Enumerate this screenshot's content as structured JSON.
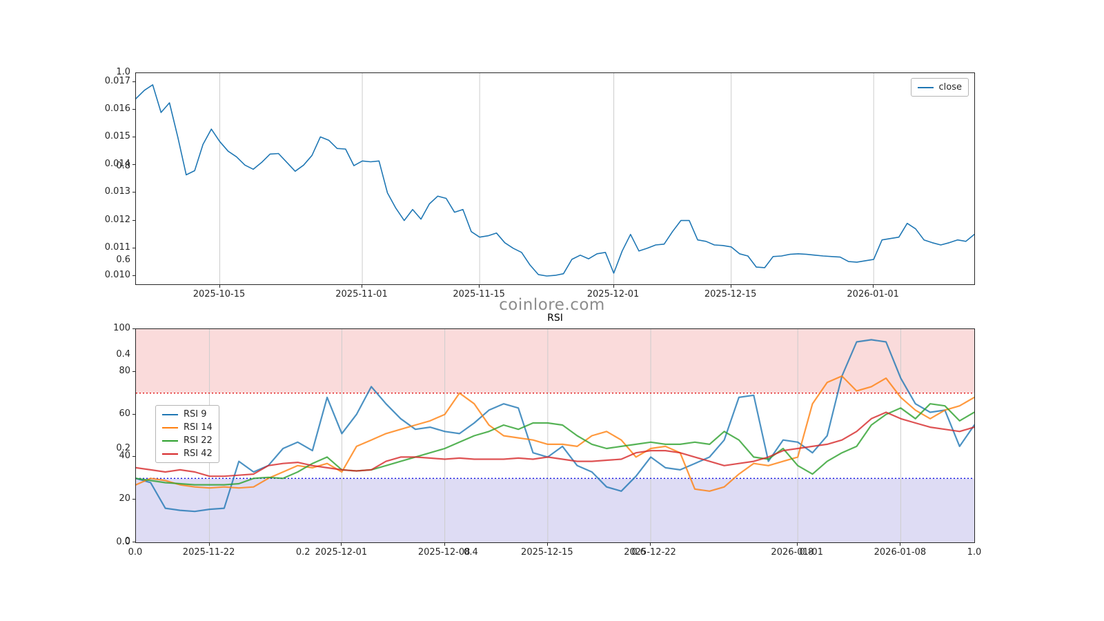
{
  "watermark": "coinlore.com",
  "rsi_title": "RSI",
  "hidden_axis": {
    "y_labels": [
      "1.0",
      "0.8",
      "0.6",
      "0.4",
      "0.2",
      "0.0"
    ],
    "x_labels": [
      "0.0",
      "0.2",
      "0.4",
      "0.6",
      "0.8",
      "1.0"
    ]
  },
  "chart_data": [
    {
      "name": "price",
      "type": "line",
      "title": "",
      "legend_pos": "upper-right",
      "ylim": [
        0.0097,
        0.01732
      ],
      "lw": 1.6,
      "opacity": 1,
      "grid": "vertical",
      "yticks": [
        {
          "v": 0.01,
          "label": "0.010"
        },
        {
          "v": 0.011,
          "label": "0.011"
        },
        {
          "v": 0.012,
          "label": "0.012"
        },
        {
          "v": 0.013,
          "label": "0.013"
        },
        {
          "v": 0.014,
          "label": "0.014"
        },
        {
          "v": 0.015,
          "label": "0.015"
        },
        {
          "v": 0.016,
          "label": "0.016"
        },
        {
          "v": 0.017,
          "label": "0.017"
        }
      ],
      "xticks": [
        {
          "i": 10,
          "label": "2025-10-15"
        },
        {
          "i": 27,
          "label": "2025-11-01"
        },
        {
          "i": 41,
          "label": "2025-11-15"
        },
        {
          "i": 57,
          "label": "2025-12-01"
        },
        {
          "i": 71,
          "label": "2025-12-15"
        },
        {
          "i": 88,
          "label": "2026-01-01"
        }
      ],
      "series": [
        {
          "name": "close",
          "color": "#1f77b4",
          "values": [
            0.0164,
            0.0167,
            0.0169,
            0.0159,
            0.01625,
            0.015,
            0.01365,
            0.0138,
            0.01475,
            0.0153,
            0.01485,
            0.0145,
            0.0143,
            0.014,
            0.01385,
            0.0141,
            0.0144,
            0.01442,
            0.0141,
            0.01378,
            0.014,
            0.01435,
            0.01502,
            0.0149,
            0.0146,
            0.01458,
            0.01398,
            0.01415,
            0.01412,
            0.01415,
            0.013,
            0.01245,
            0.012,
            0.0124,
            0.01205,
            0.0126,
            0.01288,
            0.0128,
            0.0123,
            0.0124,
            0.0116,
            0.0114,
            0.01145,
            0.01155,
            0.0112,
            0.011,
            0.01085,
            0.0104,
            0.01005,
            0.01,
            0.01002,
            0.01008,
            0.0106,
            0.01075,
            0.01062,
            0.0108,
            0.01085,
            0.0101,
            0.0109,
            0.0115,
            0.0109,
            0.011,
            0.01112,
            0.01115,
            0.0116,
            0.012,
            0.012,
            0.0113,
            0.01125,
            0.01112,
            0.0111,
            0.01105,
            0.0108,
            0.01072,
            0.01032,
            0.0103,
            0.0107,
            0.01072,
            0.01078,
            0.0108,
            0.01078,
            0.01075,
            0.01072,
            0.0107,
            0.01068,
            0.01052,
            0.0105,
            0.01055,
            0.0106,
            0.0113,
            0.01135,
            0.0114,
            0.0119,
            0.0117,
            0.0113,
            0.0112,
            0.01112,
            0.0112,
            0.0113,
            0.01125,
            0.0115
          ]
        }
      ]
    },
    {
      "name": "rsi",
      "type": "line",
      "title": "RSI",
      "legend_pos": "mid-left",
      "ylim": [
        0,
        100
      ],
      "lw": 2.2,
      "opacity": 0.8,
      "grid": "vertical",
      "bands": [
        {
          "name": "overbought-band",
          "from": 70,
          "to": 100,
          "color": "#fadbdb"
        },
        {
          "name": "oversold-band",
          "from": 0,
          "to": 30,
          "color": "#dedcf4"
        }
      ],
      "hlines": [
        {
          "name": "overbought-line",
          "v": 70,
          "color": "#e01010"
        },
        {
          "name": "oversold-line",
          "v": 30,
          "color": "#1010e0"
        }
      ],
      "yticks": [
        {
          "v": 0,
          "label": "0"
        },
        {
          "v": 20,
          "label": "20"
        },
        {
          "v": 40,
          "label": "40"
        },
        {
          "v": 60,
          "label": "60"
        },
        {
          "v": 80,
          "label": "80"
        },
        {
          "v": 100,
          "label": "100"
        }
      ],
      "xticks": [
        {
          "i": 5,
          "label": "2025-11-22"
        },
        {
          "i": 14,
          "label": "2025-12-01"
        },
        {
          "i": 21,
          "label": "2025-12-08"
        },
        {
          "i": 28,
          "label": "2025-12-15"
        },
        {
          "i": 35,
          "label": "2025-12-22"
        },
        {
          "i": 45,
          "label": "2026-01-01"
        },
        {
          "i": 52,
          "label": "2026-01-08"
        }
      ],
      "series": [
        {
          "name": "RSI 9",
          "color": "#1f77b4",
          "values": [
            30,
            28,
            16,
            15,
            14.5,
            15.5,
            16,
            38,
            33,
            36,
            44,
            47,
            43,
            68,
            51,
            60,
            73,
            65,
            58,
            53,
            54,
            52,
            51,
            56,
            62,
            65,
            63,
            42,
            40,
            45,
            36,
            33,
            26,
            24,
            31,
            40,
            35,
            34,
            37,
            40,
            48,
            68,
            69,
            38,
            48,
            47,
            42,
            50,
            78,
            94,
            95,
            94,
            77,
            65,
            61,
            62,
            45,
            55
          ]
        },
        {
          "name": "RSI 14",
          "color": "#ff7f0e",
          "values": [
            27,
            30,
            29,
            27,
            26,
            25.5,
            26,
            25.5,
            26,
            30,
            33,
            36,
            35,
            37,
            33,
            45,
            48,
            51,
            53,
            55,
            57,
            60,
            70,
            65,
            55,
            50,
            49,
            48,
            46,
            46,
            45,
            50,
            52,
            48,
            40,
            44,
            45,
            42,
            25,
            24,
            26,
            32,
            37,
            36,
            38,
            40,
            65,
            75,
            78,
            71,
            73,
            77,
            68,
            62,
            58,
            62,
            64,
            68
          ]
        },
        {
          "name": "RSI 22",
          "color": "#2ca02c",
          "values": [
            30,
            29,
            28,
            27.5,
            27,
            27,
            27,
            27.5,
            30,
            30.5,
            30,
            33,
            37,
            40,
            34,
            33.5,
            34,
            36,
            38,
            40,
            42,
            44,
            47,
            50,
            52,
            55,
            53,
            56,
            56,
            55,
            50,
            46,
            44,
            45,
            46,
            47,
            46,
            46,
            47,
            46,
            52,
            48,
            40,
            39,
            44,
            36,
            32,
            38,
            42,
            45,
            55,
            60,
            63,
            58,
            65,
            64,
            57,
            61
          ]
        },
        {
          "name": "RSI 42",
          "color": "#d62728",
          "values": [
            35,
            34,
            33,
            34,
            33,
            31,
            31,
            31.5,
            32,
            36,
            37,
            37.5,
            36,
            35,
            34,
            33.5,
            34,
            38,
            40,
            40,
            39.5,
            39,
            39.5,
            39,
            39,
            39,
            39.5,
            39,
            40,
            39,
            38,
            38,
            38.5,
            39,
            42,
            43,
            43,
            42,
            40,
            38,
            36,
            37,
            38,
            40,
            43,
            44,
            45,
            46,
            48,
            52,
            58,
            61,
            58,
            56,
            54,
            53,
            52,
            54
          ]
        }
      ]
    }
  ]
}
